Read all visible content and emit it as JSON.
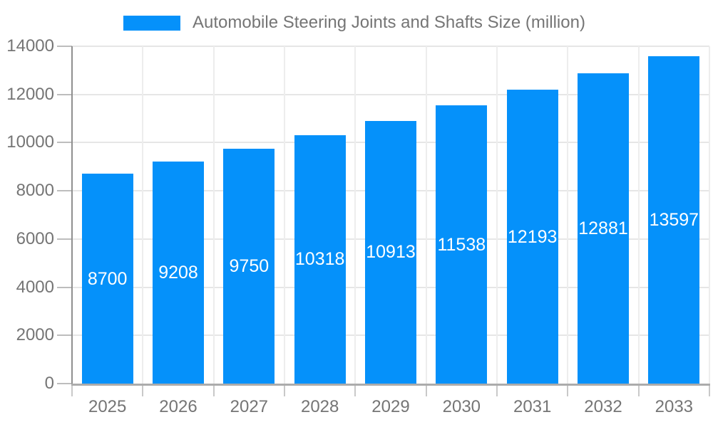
{
  "chart_data": {
    "type": "bar",
    "title": "Automobile Steering Joints and Shafts Size (million)",
    "categories": [
      "2025",
      "2026",
      "2027",
      "2028",
      "2029",
      "2030",
      "2031",
      "2032",
      "2033"
    ],
    "values": [
      8700,
      9208,
      9750,
      10318,
      10913,
      11538,
      12193,
      12881,
      13597
    ],
    "xlabel": "",
    "ylabel": "",
    "ylim": [
      0,
      14000
    ],
    "yticks": [
      0,
      2000,
      4000,
      6000,
      8000,
      10000,
      12000,
      14000
    ],
    "grid": true,
    "legend_position": "top",
    "value_labels": "inside-center",
    "bar_color": "#0591fa",
    "value_label_color": "#ffffff",
    "axis_text_color": "#757575"
  }
}
